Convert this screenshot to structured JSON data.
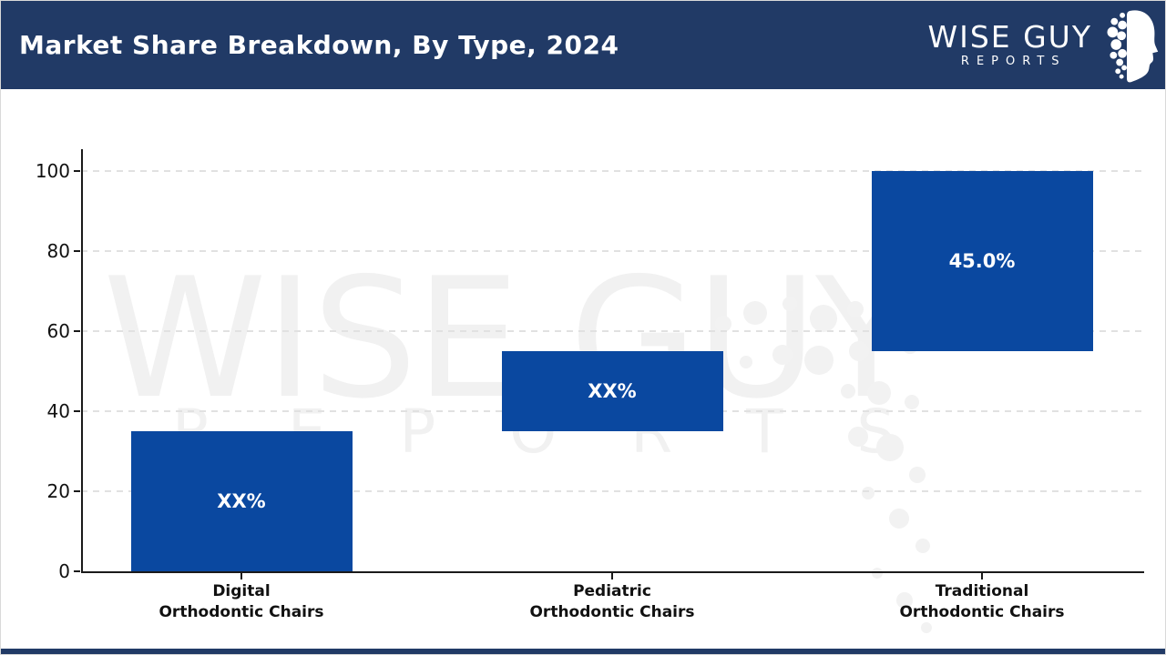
{
  "header": {
    "title": "Market Share Breakdown, By Type, 2024",
    "logo": {
      "name": "WISE GUY",
      "subtitle": "REPORTS"
    }
  },
  "watermark": {
    "line1": "WISE GUY",
    "line2": "R E P O R T S"
  },
  "chart_data": {
    "type": "bar",
    "subtype": "floating-waterfall",
    "title": "Market Share Breakdown, By Type, 2024",
    "categories": [
      [
        "Digital",
        "Orthodontic Chairs"
      ],
      [
        "Pediatric",
        "Orthodontic Chairs"
      ],
      [
        "Traditional",
        "Orthodontic Chairs"
      ]
    ],
    "segments": [
      {
        "category": "Digital Orthodontic Chairs",
        "start": 0,
        "end": 35,
        "label": "XX%"
      },
      {
        "category": "Pediatric Orthodontic Chairs",
        "start": 35,
        "end": 55,
        "label": "XX%"
      },
      {
        "category": "Traditional Orthodontic Chairs",
        "start": 55,
        "end": 100,
        "label": "45.0%"
      }
    ],
    "yticks": [
      0,
      20,
      40,
      60,
      80,
      100
    ],
    "ylim": [
      0,
      105
    ],
    "xlabel": "",
    "ylabel": "",
    "grid": {
      "axis": "y",
      "style": "dashed",
      "color": "#e1e1e1"
    },
    "legend": null,
    "bar_color": "#0a48a0",
    "bar_label_color": "#ffffff",
    "axis_color": "#1a1a1a",
    "header_color": "#213a66",
    "watermark_color": "#f1f1f1"
  }
}
